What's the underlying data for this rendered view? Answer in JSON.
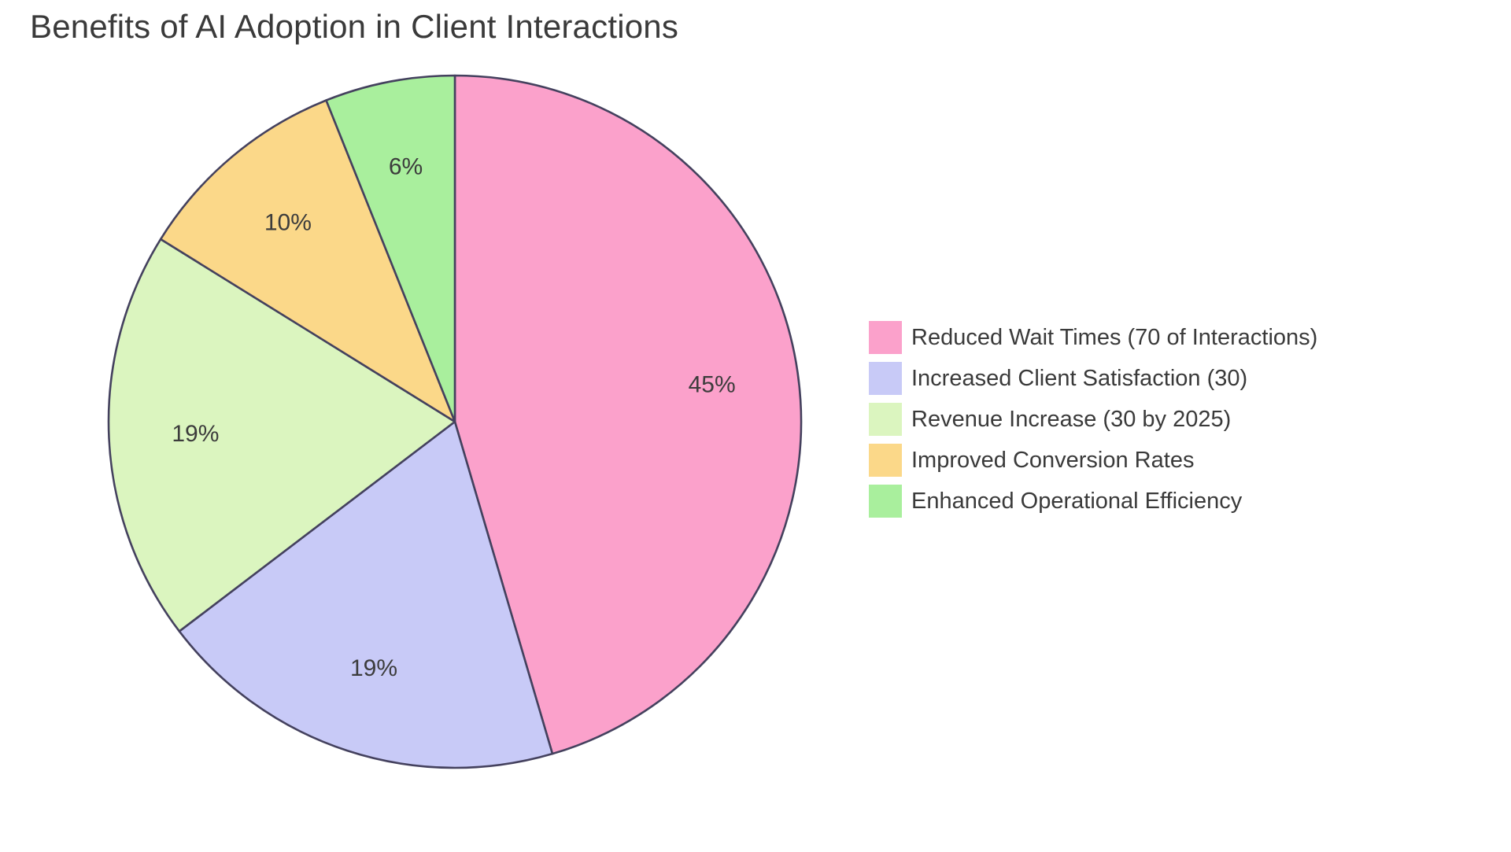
{
  "page": {
    "background_color": "#ffffff"
  },
  "chart_data": {
    "type": "pie",
    "title": "Benefits of AI Adoption in Client Interactions",
    "legend_position": "right",
    "start_angle_deg": 0,
    "direction": "clockwise",
    "slice_border_color": "#44415e",
    "slice_label_color": "#3c3c3c",
    "slice_label_radius_fraction": 0.75,
    "slices": [
      {
        "legend_label": "Reduced Wait Times (70 of Interactions)",
        "value": 45,
        "pct_label": "45%",
        "color": "#fba1cb"
      },
      {
        "legend_label": "Increased Client Satisfaction (30)",
        "value": 19,
        "pct_label": "19%",
        "color": "#c8caf7"
      },
      {
        "legend_label": "Revenue Increase (30 by 2025)",
        "value": 19,
        "pct_label": "19%",
        "color": "#dbf5bf"
      },
      {
        "legend_label": "Improved Conversion Rates",
        "value": 10,
        "pct_label": "10%",
        "color": "#fbd889"
      },
      {
        "legend_label": "Enhanced Operational Efficiency",
        "value": 6,
        "pct_label": "6%",
        "color": "#a9ef9d"
      }
    ]
  }
}
